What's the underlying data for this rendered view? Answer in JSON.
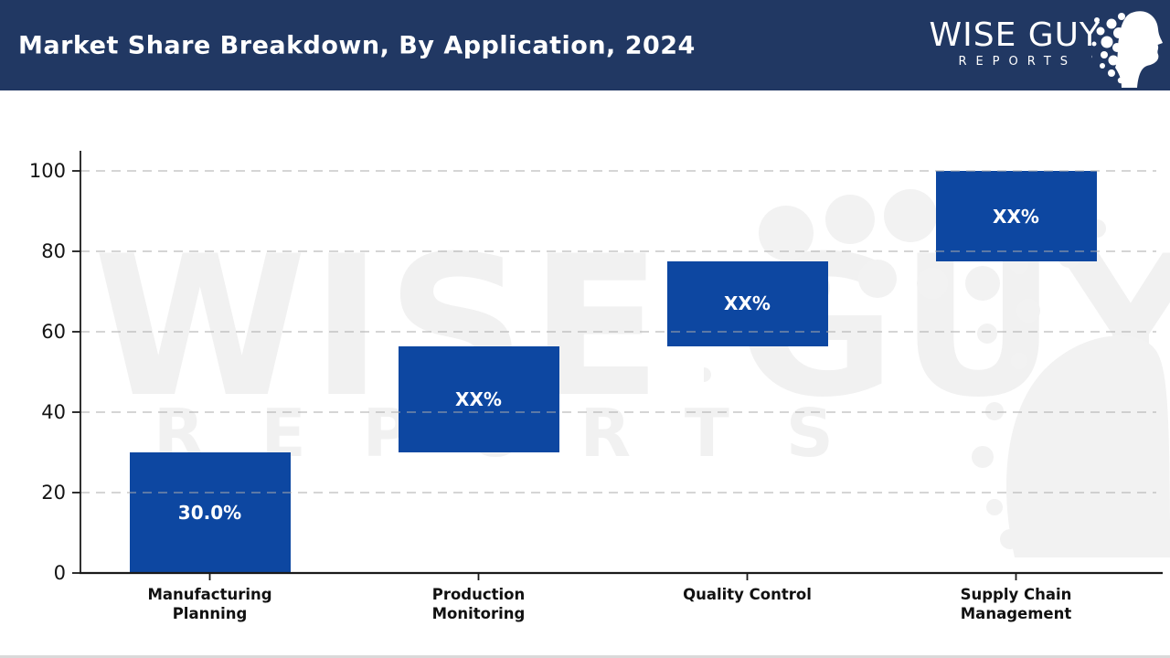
{
  "header": {
    "title": "Market Share Breakdown, By Application, 2024",
    "bg_color": "#213863",
    "logo": {
      "line1": "WISE GUY",
      "line2": "REPORTS"
    }
  },
  "watermark": {
    "line1": "WISE GUY",
    "line2": "REPORTS"
  },
  "chart_data": {
    "type": "bar",
    "subtype": "waterfall",
    "title": "Market Share Breakdown, By Application, 2024",
    "categories": [
      "Manufacturing Planning",
      "Production Monitoring",
      "Quality Control",
      "Supply Chain Management"
    ],
    "category_lines": [
      [
        "Manufacturing",
        "Planning"
      ],
      [
        "Production",
        "Monitoring"
      ],
      [
        "Quality Control"
      ],
      [
        "Supply Chain",
        "Management"
      ]
    ],
    "segments": [
      {
        "category": "Manufacturing Planning",
        "start": 0,
        "end": 30,
        "label": "30.0%"
      },
      {
        "category": "Production Monitoring",
        "start": 30,
        "end": 56.4,
        "label": "XX%"
      },
      {
        "category": "Quality Control",
        "start": 56.4,
        "end": 77.5,
        "label": "XX%"
      },
      {
        "category": "Supply Chain Management",
        "start": 77.5,
        "end": 100,
        "label": "XX%"
      }
    ],
    "yticks": [
      0,
      20,
      40,
      60,
      80,
      100
    ],
    "ylim": [
      0,
      105
    ],
    "xlabel": "",
    "ylabel": "",
    "grid": {
      "axis": "y",
      "style": "dashed",
      "color": "#d9d9d9"
    },
    "legend": "none",
    "bar_color": "#0d47a1",
    "bar_label_color": "#ffffff"
  }
}
